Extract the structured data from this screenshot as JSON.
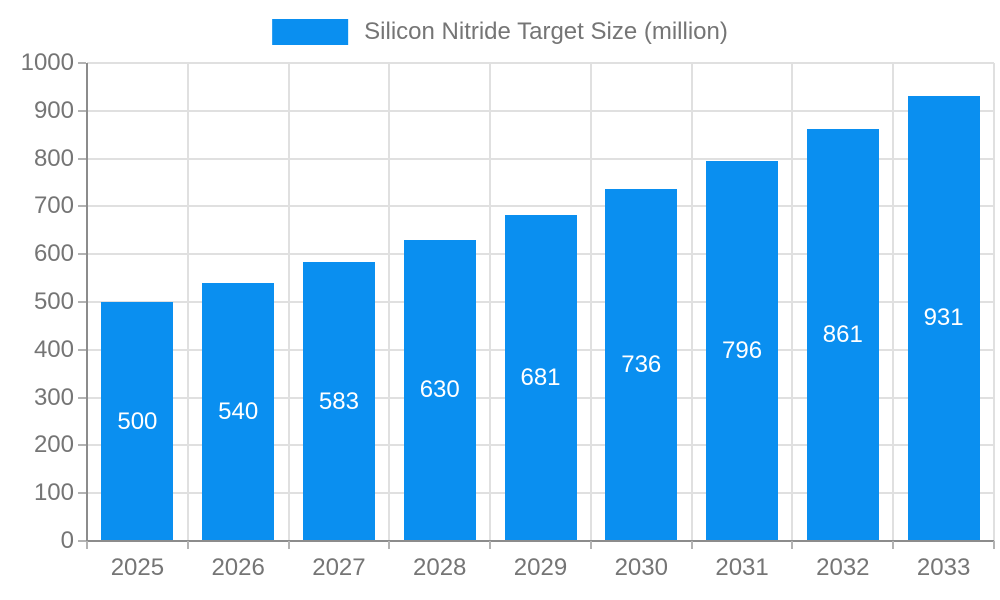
{
  "chart_data": {
    "type": "bar",
    "title": "",
    "legend": "Silicon Nitride Target Size (million)",
    "legend_position": "top",
    "categories": [
      "2025",
      "2026",
      "2027",
      "2028",
      "2029",
      "2030",
      "2031",
      "2032",
      "2033"
    ],
    "values": [
      500,
      540,
      583,
      630,
      681,
      736,
      796,
      861,
      931
    ],
    "xlabel": "",
    "ylabel": "",
    "ylim": [
      0,
      1000
    ],
    "yticks": [
      0,
      100,
      200,
      300,
      400,
      500,
      600,
      700,
      800,
      900,
      1000
    ],
    "grid": true,
    "colors": {
      "bar": "#0a8ff0",
      "value_label": "#ffffff",
      "axis_text": "#757575",
      "gridline": "#e0e0e0",
      "axis_line": "#8c8c8c",
      "tick_mark": "#b3b3b3",
      "background": "#ffffff"
    }
  }
}
